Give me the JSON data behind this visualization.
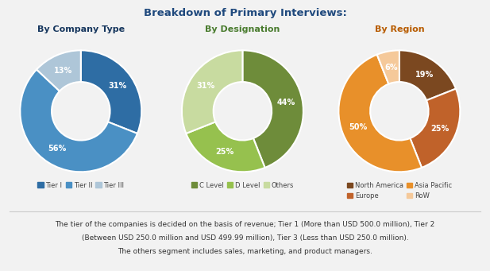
{
  "title": "Breakdown of Primary Interviews:",
  "title_color": "#1f497d",
  "background_color": "#f2f2f2",
  "chart1": {
    "title": "By Company Type",
    "title_color": "#17375e",
    "values": [
      31,
      56,
      13
    ],
    "labels": [
      "31%",
      "56%",
      "13%"
    ],
    "legend_labels": [
      "Tier I",
      "Tier II",
      "Tier III"
    ],
    "colors": [
      "#2e6da4",
      "#4a90c4",
      "#aec6d8"
    ],
    "startangle": 90
  },
  "chart2": {
    "title": "By Designation",
    "title_color": "#4a7c2f",
    "values": [
      44,
      25,
      31
    ],
    "labels": [
      "44%",
      "25%",
      "31%"
    ],
    "legend_labels": [
      "C Level",
      "D Level",
      "Others"
    ],
    "colors": [
      "#6e8c3a",
      "#96c14e",
      "#c8dba0"
    ],
    "startangle": 90
  },
  "chart3": {
    "title": "By Region",
    "title_color": "#b85c00",
    "values": [
      19,
      25,
      50,
      6
    ],
    "labels": [
      "19%",
      "25%",
      "50%",
      "6%"
    ],
    "legend_labels": [
      "North America",
      "Europe",
      "Asia Pacific",
      "RoW"
    ],
    "colors": [
      "#7b4820",
      "#c0622a",
      "#e8902a",
      "#f5c99a"
    ],
    "startangle": 90
  },
  "footnote1": "The tier of the companies is decided on the basis of revenue; Tier 1 (More than USD 500.0 million), Tier 2",
  "footnote2": "(Between USD 250.0 million and USD 499.99 million), Tier 3 (Less than USD 250.0 million).",
  "footnote3": "The others segment includes sales, marketing, and product managers."
}
